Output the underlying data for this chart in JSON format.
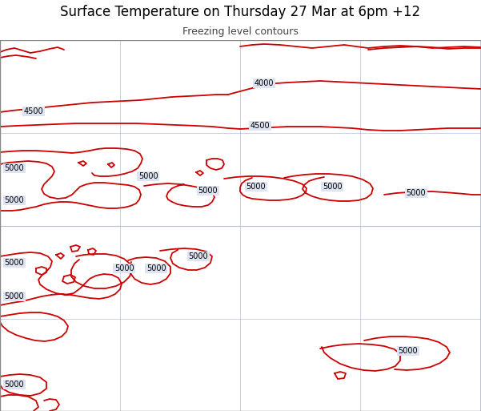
{
  "title": "Surface Temperature on Thursday 27 Mar at 6pm +12",
  "subtitle": "Freezing level contours",
  "bg_color": "#dde3f0",
  "contour_color": "#cc0000",
  "label_fontsize": 7,
  "title_fontsize": 12,
  "subtitle_fontsize": 9,
  "grid_color": "#b8bfd4",
  "figsize": [
    6.01,
    5.13
  ],
  "dpi": 100
}
